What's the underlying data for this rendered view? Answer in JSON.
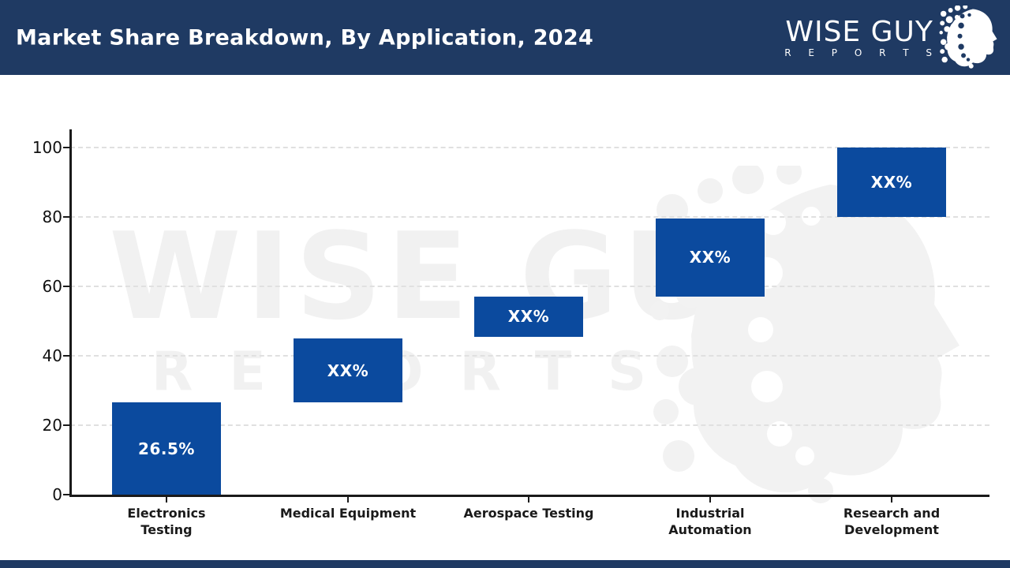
{
  "header": {
    "title": "Market Share Breakdown, By Application, 2024",
    "bg_color": "#1f3a63",
    "logo": {
      "line1": "WISE GUY",
      "line2": "R E P O R T S"
    }
  },
  "watermark": {
    "line1": "WISE GUY",
    "line2": "REPORTS"
  },
  "footer": {
    "bg_color": "#1f3a63"
  },
  "chart_data": {
    "type": "bar",
    "subtype": "waterfall",
    "title": "Market Share Breakdown, By Application, 2024",
    "categories": [
      "Electronics Testing",
      "Medical Equipment",
      "Aerospace Testing",
      "Industrial Automation",
      "Research and Development"
    ],
    "category_lines": [
      [
        "Electronics",
        "Testing"
      ],
      [
        "Medical Equipment"
      ],
      [
        "Aerospace Testing"
      ],
      [
        "Industrial",
        "Automation"
      ],
      [
        "Research and",
        "Development"
      ]
    ],
    "segments": [
      {
        "category": "Electronics Testing",
        "start": 0,
        "end": 26.5,
        "label": "26.5%"
      },
      {
        "category": "Medical Equipment",
        "start": 26.5,
        "end": 45,
        "label": "XX%"
      },
      {
        "category": "Aerospace Testing",
        "start": 45.5,
        "end": 57,
        "label": "XX%"
      },
      {
        "category": "Industrial Automation",
        "start": 57,
        "end": 79.5,
        "label": "XX%"
      },
      {
        "category": "Research and Development",
        "start": 80,
        "end": 100,
        "label": "XX%"
      }
    ],
    "xlabel": "",
    "ylabel": "",
    "ylim": [
      0,
      105
    ],
    "yticks": [
      0,
      20,
      40,
      60,
      80,
      100
    ],
    "grid": "horizontal-dashed",
    "legend": "none",
    "bar_color": "#0b4a9e",
    "bar_label_color": "#ffffff"
  }
}
